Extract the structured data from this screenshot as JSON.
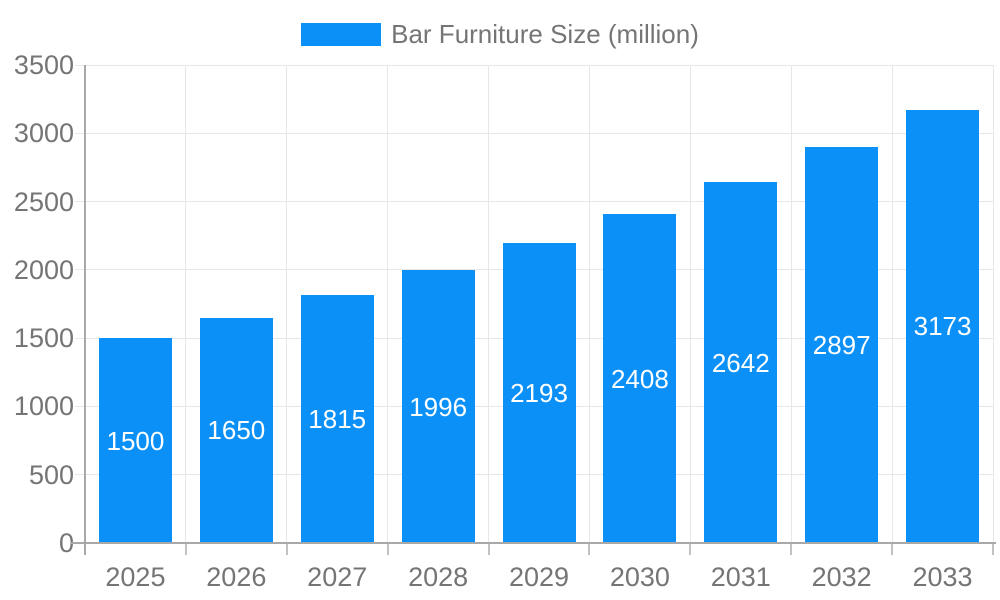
{
  "legend": {
    "label": "Bar Furniture Size (million)"
  },
  "chart_data": {
    "type": "bar",
    "title": "",
    "xlabel": "",
    "ylabel": "",
    "categories": [
      "2025",
      "2026",
      "2027",
      "2028",
      "2029",
      "2030",
      "2031",
      "2032",
      "2033"
    ],
    "values": [
      1500,
      1650,
      1815,
      1996,
      2193,
      2408,
      2642,
      2897,
      3173
    ],
    "series": [
      {
        "name": "Bar Furniture Size (million)",
        "values": [
          1500,
          1650,
          1815,
          1996,
          2193,
          2408,
          2642,
          2897,
          3173
        ]
      }
    ],
    "bar_value_labels": [
      "1500",
      "1650",
      "1815",
      "1996",
      "2193",
      "2408",
      "2642",
      "2897",
      "3173"
    ],
    "ylim": [
      0,
      3500
    ],
    "ytick_step": 500,
    "yticks": [
      0,
      500,
      1000,
      1500,
      2000,
      2500,
      3000,
      3500
    ],
    "grid": true,
    "legend_position": "top",
    "colors": {
      "bar": "#0b90f8",
      "bar_label_text": "#ffffff",
      "axis_text": "#757575",
      "gridline": "#e7e7e7",
      "axis_line": "#a8a8a8",
      "tick": "#c2c2c2",
      "background": "#ffffff"
    }
  }
}
